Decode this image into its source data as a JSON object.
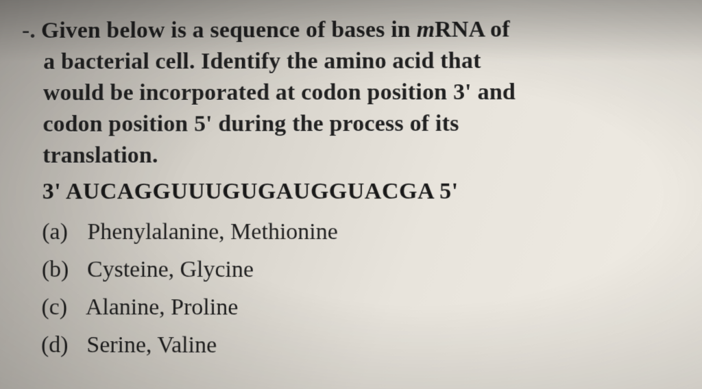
{
  "background": {
    "gradient_stops": [
      "#b8b4ae",
      "#d4d0c8",
      "#e8e4dc",
      "#f0ece4"
    ],
    "text_color": "#1a1a1a"
  },
  "typography": {
    "family": "Georgia / serif",
    "question_fontsize_pt": 26,
    "sequence_fontsize_pt": 26,
    "options_fontsize_pt": 26,
    "question_weight": 600,
    "sequence_weight": 700,
    "options_weight": 500,
    "line_height": 1.35
  },
  "question": {
    "bullet": "-.",
    "line1_pre": "Given below is a sequence of bases in ",
    "line1_italic": "m",
    "line1_post": "RNA of",
    "line2": "a bacterial cell. Identify the amino acid that",
    "line3": "would be incorporated at codon position 3' and",
    "line4": "codon position 5' during the process of its",
    "line5": "translation."
  },
  "sequence": {
    "text": "3' AUCAGGUUUGUGAUGGUACGA 5'"
  },
  "options": [
    {
      "label": "(a)",
      "text": "Phenylalanine, Methionine"
    },
    {
      "label": "(b)",
      "text": "Cysteine, Glycine"
    },
    {
      "label": "(c)",
      "text": "Alanine, Proline"
    },
    {
      "label": "(d)",
      "text": "Serine, Valine"
    }
  ]
}
